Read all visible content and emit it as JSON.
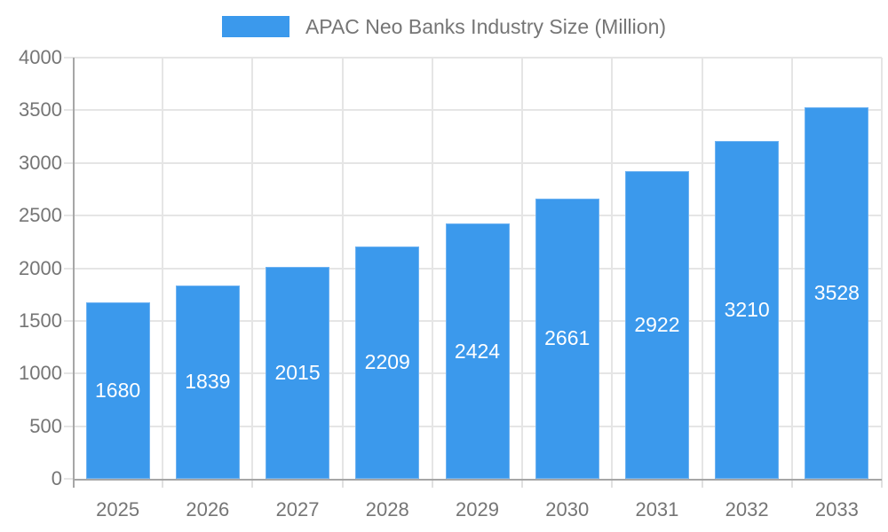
{
  "chart_data": {
    "type": "bar",
    "title": "APAC Neo Banks Industry Size (Million)",
    "legend": {
      "position": "top-center",
      "entries": [
        "APAC Neo Banks Industry Size (Million)"
      ]
    },
    "categories": [
      "2025",
      "2026",
      "2027",
      "2028",
      "2029",
      "2030",
      "2031",
      "2032",
      "2033"
    ],
    "values": [
      1680,
      1839,
      2015,
      2209,
      2424,
      2661,
      2922,
      3210,
      3528
    ],
    "value_labels": "inside-center",
    "xlabel": "",
    "ylabel": "",
    "ylim": [
      0,
      4000
    ],
    "yticks": [
      0,
      500,
      1000,
      1500,
      2000,
      2500,
      3000,
      3500,
      4000
    ],
    "grid": true,
    "colors": {
      "bar": "#3B99EC",
      "bar_border": "#6FB3F2",
      "grid": "#E5E5E5",
      "axis": "#A6A6A6",
      "tick_label": "#757575",
      "value_label": "#FFFFFF",
      "background": "#FFFFFF"
    }
  }
}
